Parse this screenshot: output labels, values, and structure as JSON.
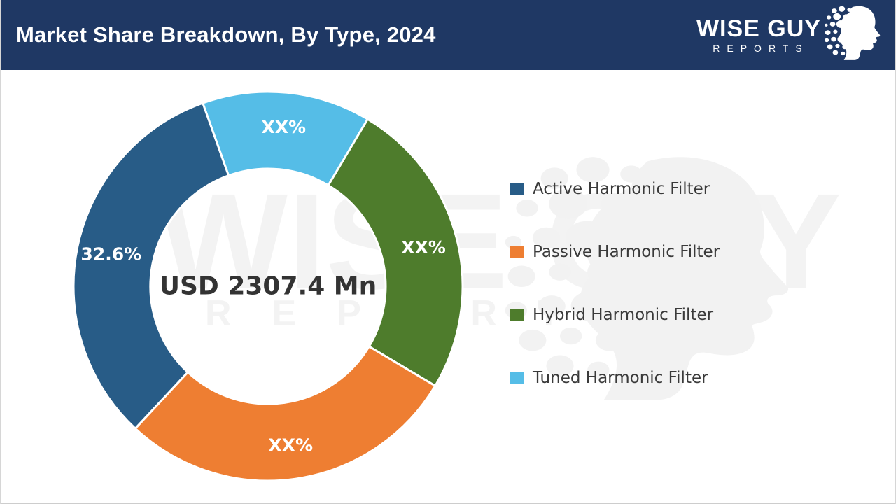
{
  "header": {
    "title": "Market Share Breakdown, By Type, 2024",
    "bg_color": "#1f3864",
    "logo": {
      "line1": "WISE GUY",
      "line2": "REPORTS",
      "face_icon": "face-dots-icon"
    }
  },
  "chart_data": {
    "type": "pie",
    "subtype": "donut",
    "title": "Market Share Breakdown, By Type, 2024",
    "center_label": "USD 2307.4 Mn",
    "start_angle_deg": -19.6,
    "direction": "clockwise",
    "segments": [
      {
        "label": "Tuned Harmonic Filter",
        "value_pct": 14.0,
        "display_label": "XX%",
        "color": "#55bde7"
      },
      {
        "label": "Hybrid Harmonic Filter",
        "value_pct": 25.0,
        "display_label": "XX%",
        "color": "#4e7c2c"
      },
      {
        "label": "Passive Harmonic Filter",
        "value_pct": 28.4,
        "display_label": "XX%",
        "color": "#ee7e32"
      },
      {
        "label": "Active Harmonic Filter",
        "value_pct": 32.6,
        "display_label": "32.6%",
        "color": "#285c87"
      }
    ],
    "legend": {
      "position": "right",
      "items": [
        {
          "label": "Active Harmonic Filter",
          "color": "#285c87"
        },
        {
          "label": "Passive Harmonic Filter",
          "color": "#ee7e32"
        },
        {
          "label": "Hybrid Harmonic Filter",
          "color": "#4e7c2c"
        },
        {
          "label": "Tuned Harmonic Filter",
          "color": "#55bde7"
        }
      ]
    }
  },
  "watermark": {
    "line1": "WISE GUY",
    "line2": "REPORTS",
    "face_icon": "face-dots-icon"
  }
}
